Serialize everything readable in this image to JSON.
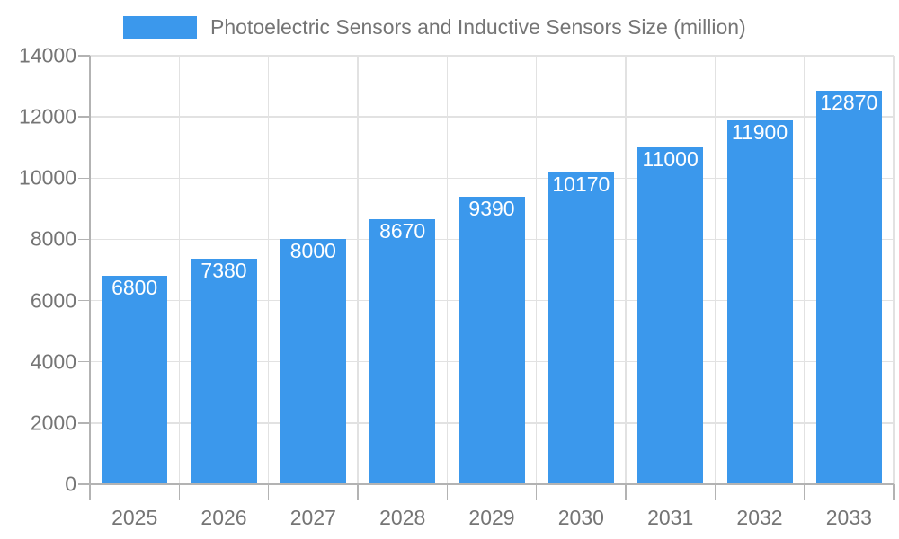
{
  "legend": {
    "label": "Photoelectric Sensors and Inductive Sensors Size (million)"
  },
  "chart_data": {
    "type": "bar",
    "title": "Photoelectric Sensors and Inductive Sensors Size (million)",
    "categories": [
      "2025",
      "2026",
      "2027",
      "2028",
      "2029",
      "2030",
      "2031",
      "2032",
      "2033"
    ],
    "values": [
      6800,
      7380,
      8000,
      8670,
      9390,
      10170,
      11000,
      11900,
      12870
    ],
    "xlabel": "",
    "ylabel": "",
    "ylim": [
      0,
      14000
    ],
    "ytick_step": 2000,
    "grid": true,
    "legend_position": "top",
    "bar_value_labels": "inside-center"
  },
  "colors": {
    "bar": "#3b98ec",
    "title_text": "#757575",
    "axis_text": "#757575",
    "bar_label_text": "#ffffff",
    "axis_line": "#b3b3b3",
    "grid_line": "#e2e2e2",
    "background": "#ffffff"
  }
}
